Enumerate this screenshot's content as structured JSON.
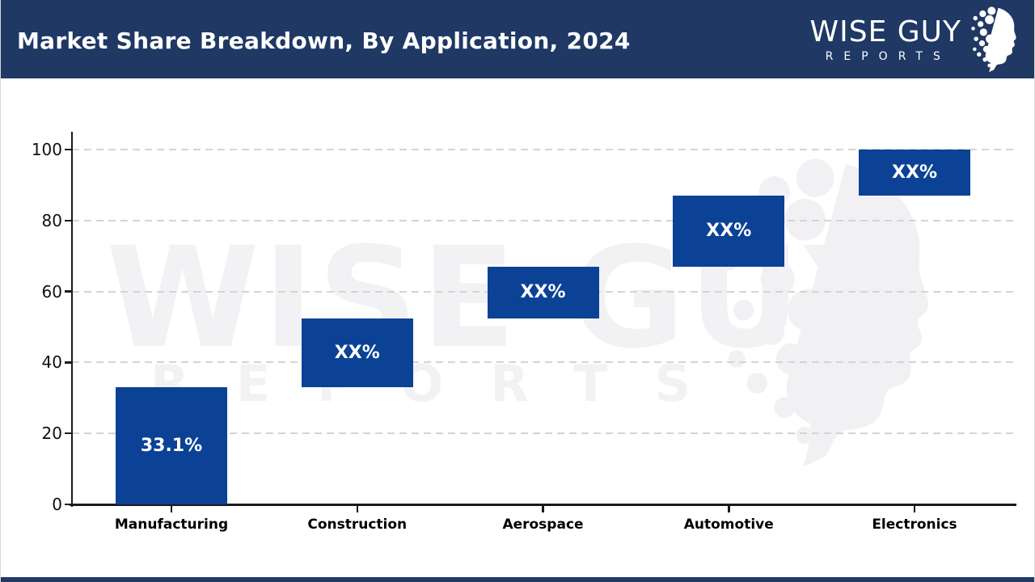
{
  "header": {
    "title": "Market Share Breakdown, By Application, 2024",
    "logo": {
      "line1": "WISE GUY",
      "line2": "REPORTS"
    }
  },
  "watermark": {
    "line1": "WISE GUY",
    "line2": "REPORTS"
  },
  "chart_data": {
    "type": "bar",
    "subtype": "waterfall",
    "title": "Market Share Breakdown, By Application, 2024",
    "categories": [
      "Manufacturing",
      "Construction",
      "Aerospace",
      "Automotive",
      "Electronics"
    ],
    "segments": [
      {
        "category": "Manufacturing",
        "start": 0,
        "end": 33.1,
        "label": "33.1%"
      },
      {
        "category": "Construction",
        "start": 33.1,
        "end": 52.5,
        "label": "XX%"
      },
      {
        "category": "Aerospace",
        "start": 52.5,
        "end": 67,
        "label": "XX%"
      },
      {
        "category": "Automotive",
        "start": 67,
        "end": 87,
        "label": "XX%"
      },
      {
        "category": "Electronics",
        "start": 87,
        "end": 100,
        "label": "XX%"
      }
    ],
    "xlabel": "",
    "ylabel": "",
    "ylim": [
      0,
      100
    ],
    "y_ticks": [
      0,
      20,
      40,
      60,
      80,
      100
    ],
    "grid": true,
    "legend": false,
    "bar_color": "#0b4295",
    "label_color": "#ffffff"
  },
  "colors": {
    "header_bg": "#1f3864",
    "bar": "#0b4295",
    "grid": "#d4d4d4",
    "axis": "#1a1a1a",
    "watermark": "#f2f2f5"
  }
}
